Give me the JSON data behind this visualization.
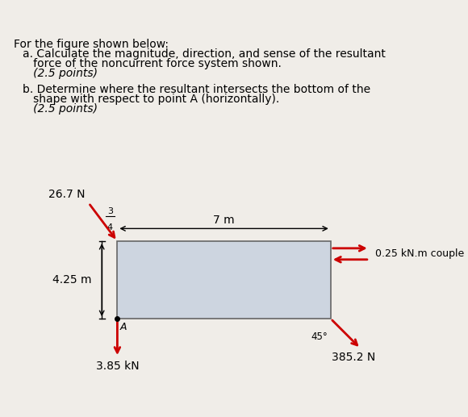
{
  "bg_color": "#f0ede8",
  "text_color": "#000000",
  "arrow_color": "#cc0000",
  "rect_color": "#cdd5e0",
  "rect_edge_color": "#666666",
  "title_line1": "For the figure shown below:",
  "question_a_1": "a. Calculate the magnitude, direction, and sense of the resultant",
  "question_a_2": "   force of the noncurrent force system shown.",
  "question_a_3": "   (2.5 points)",
  "question_b_1": "b. Determine where the resultant intersects the bottom of the",
  "question_b_2": "   shape with respect to point A (horizontally).",
  "question_b_3": "   (2.5 points)",
  "label_7m": "7 m",
  "label_4_25m": "4.25 m",
  "label_26_7N": "26.7 N",
  "label_3_85kN": "3.85 kN",
  "label_385_2N": "385.2 N",
  "label_couple": "0.25 kN.m couple",
  "label_A": "A",
  "label_45": "45°",
  "label_3": "3",
  "label_4": "4"
}
